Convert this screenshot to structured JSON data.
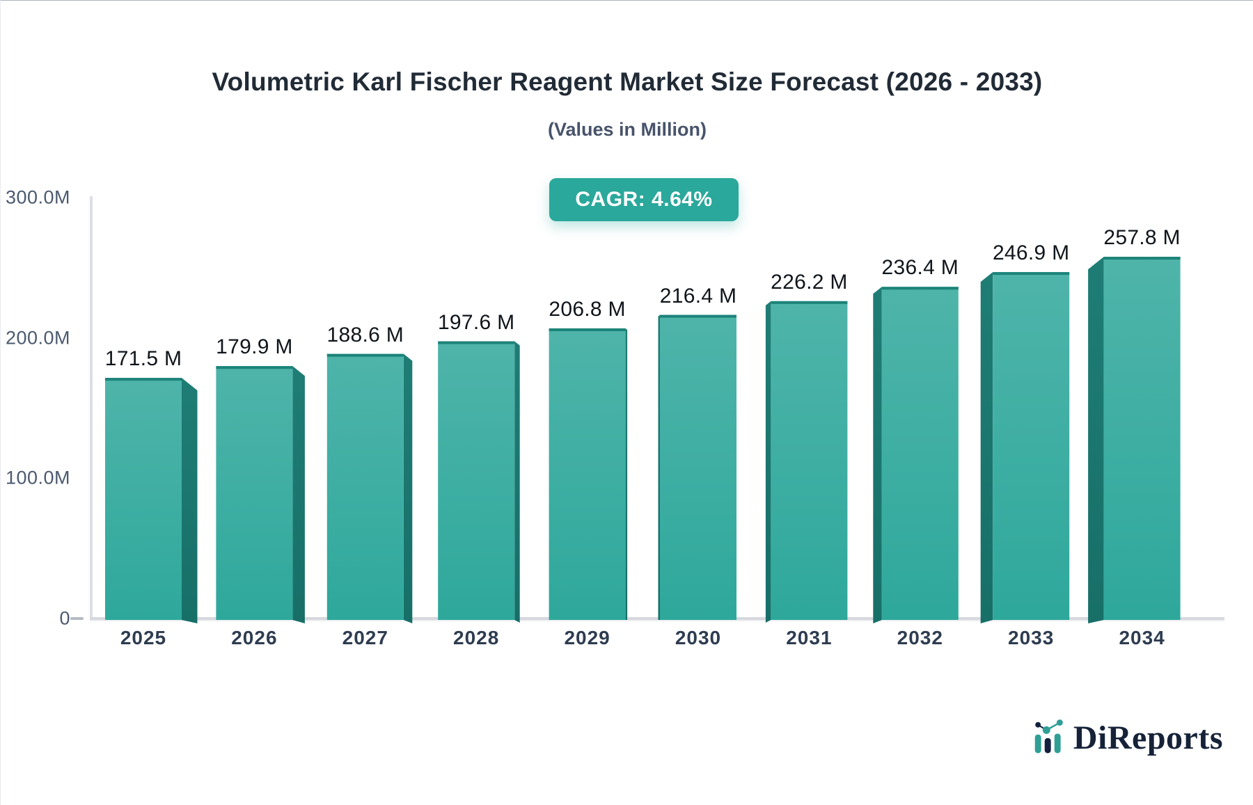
{
  "header": {
    "title": "Volumetric Karl Fischer Reagent Market Size Forecast (2026 - 2033)",
    "subtitle": "(Values in Million)"
  },
  "badge": {
    "label": "CAGR: 4.64%"
  },
  "chart_data": {
    "type": "bar",
    "title": "Volumetric Karl Fischer Reagent Market Size Forecast (2026 - 2033)",
    "subtitle": "(Values in Million)",
    "cagr": "4.64%",
    "categories": [
      "2025",
      "2026",
      "2027",
      "2028",
      "2029",
      "2030",
      "2031",
      "2032",
      "2033",
      "2034"
    ],
    "values": [
      171.5,
      179.9,
      188.6,
      197.6,
      206.8,
      216.4,
      226.2,
      236.4,
      246.9,
      257.8
    ],
    "value_labels": [
      "171.5 M",
      "179.9 M",
      "188.6 M",
      "197.6 M",
      "206.8 M",
      "216.4 M",
      "226.2 M",
      "236.4 M",
      "246.9 M",
      "257.8 M"
    ],
    "y_ticks": [
      {
        "label": "300.0M",
        "value": 300
      },
      {
        "label": "200.0M",
        "value": 200
      },
      {
        "label": "100.0M",
        "value": 100
      },
      {
        "label": "0",
        "value": 0
      }
    ],
    "ylim": [
      0,
      300
    ],
    "grid": false,
    "legend": "none",
    "theme": {
      "bar_face_top": "#4fb4aa",
      "bar_face_bottom": "#2ea89b",
      "bar_side": "#1e7d75",
      "bar_side_dark": "#176f68",
      "bar_top_edge": "#1c8379",
      "axis_line": "#d6d8dd",
      "badge_bg": "#2aa89b",
      "label_color": "#10151b"
    }
  },
  "logo": {
    "text": "DiReports"
  }
}
